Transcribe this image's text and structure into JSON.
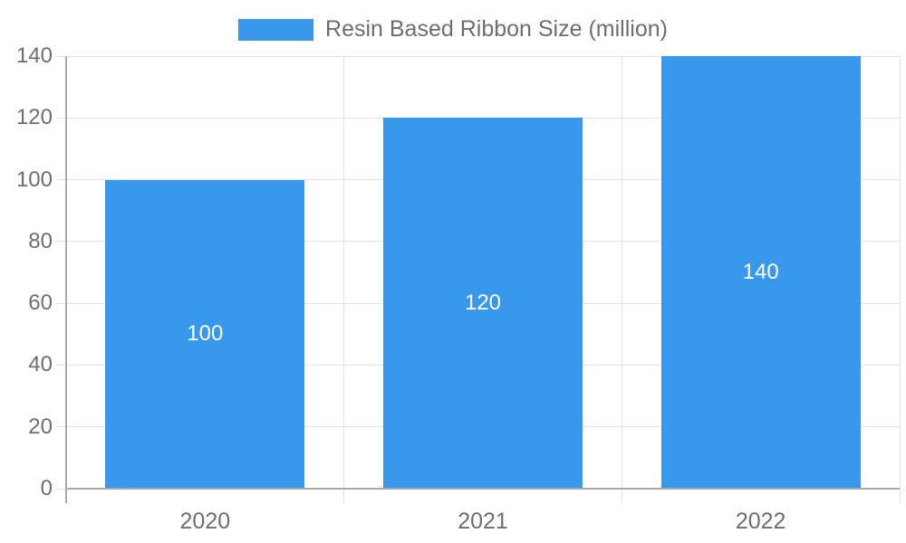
{
  "chart_data": {
    "type": "bar",
    "title": "",
    "legend": "Resin Based Ribbon Size (million)",
    "legend_position": "top",
    "categories": [
      "2020",
      "2021",
      "2022"
    ],
    "values": [
      100,
      120,
      140
    ],
    "bar_labels": [
      "100",
      "120",
      "140"
    ],
    "ylim": [
      0,
      140
    ],
    "yticks": [
      0,
      20,
      40,
      60,
      80,
      100,
      120,
      140
    ],
    "grid": true,
    "colors": {
      "bar": "#3899EC",
      "bar_label": "#FFFFFF",
      "grid": "#E3E3E3",
      "axis": "#A9A9A9",
      "tick_text": "#6E6E6E"
    }
  }
}
